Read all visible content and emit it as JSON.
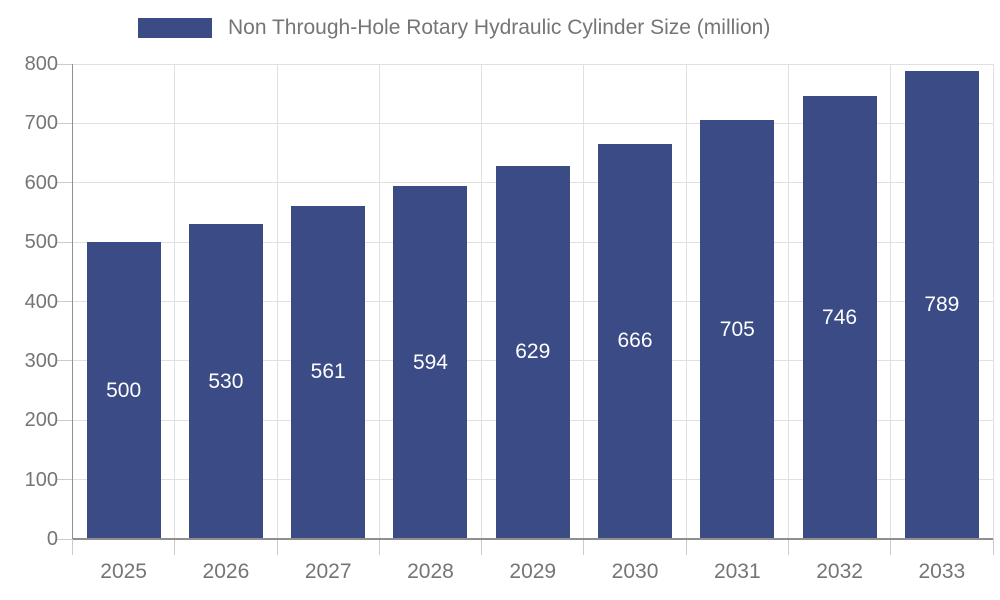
{
  "chart_data": {
    "type": "bar",
    "title": "Non Through-Hole Rotary Hydraulic Cylinder Size (million)",
    "categories": [
      "2025",
      "2026",
      "2027",
      "2028",
      "2029",
      "2030",
      "2031",
      "2032",
      "2033"
    ],
    "values": [
      500,
      530,
      561,
      594,
      629,
      666,
      705,
      746,
      789
    ],
    "xlabel": "",
    "ylabel": "",
    "ylim": [
      0,
      800
    ],
    "y_ticks": [
      0,
      100,
      200,
      300,
      400,
      500,
      600,
      700,
      800
    ],
    "grid": true,
    "legend_position": "top",
    "colors": {
      "bar": "#3A4B85",
      "value_label": "#FFFFFF",
      "axis_text": "#757575",
      "grid_line": "#E0E0E0",
      "axis_line": "#8F8F8F",
      "tick_line": "#CCCCCC",
      "background": "#FFFFFF"
    }
  }
}
